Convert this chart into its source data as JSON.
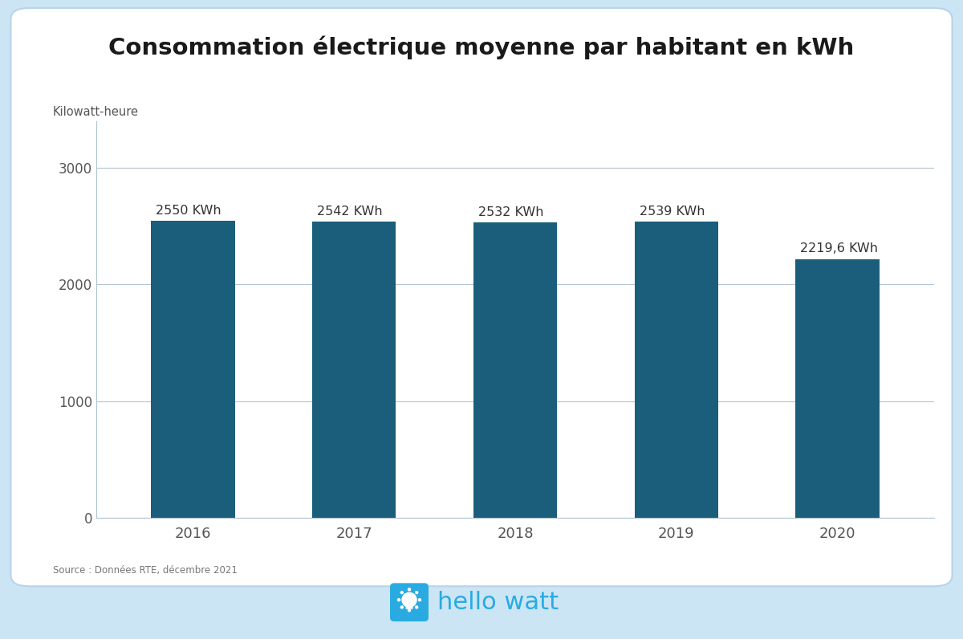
{
  "title": "Consommation électrique moyenne par habitant en kWh",
  "ylabel": "Kilowatt-heure",
  "source": "Source : Données RTE, décembre 2021",
  "categories": [
    "2016",
    "2017",
    "2018",
    "2019",
    "2020"
  ],
  "values": [
    2550,
    2542,
    2532,
    2539,
    2219.6
  ],
  "labels": [
    "2550 KWh",
    "2542 KWh",
    "2532 KWh",
    "2539 KWh",
    "2219,6 KWh"
  ],
  "bar_color": "#1b5e7b",
  "background_outer": "#cce5f5",
  "background_inner": "#ffffff",
  "grid_color": "#b0c4d0",
  "title_color": "#1a1a1a",
  "axis_label_color": "#555555",
  "source_color": "#777777",
  "label_color": "#333333",
  "ylim": [
    0,
    3400
  ],
  "yticks": [
    0,
    1000,
    2000,
    3000
  ],
  "hellowatt_color": "#29abe2",
  "footer_bg": "#cce5f5",
  "panel_border": "#b8d4e8"
}
